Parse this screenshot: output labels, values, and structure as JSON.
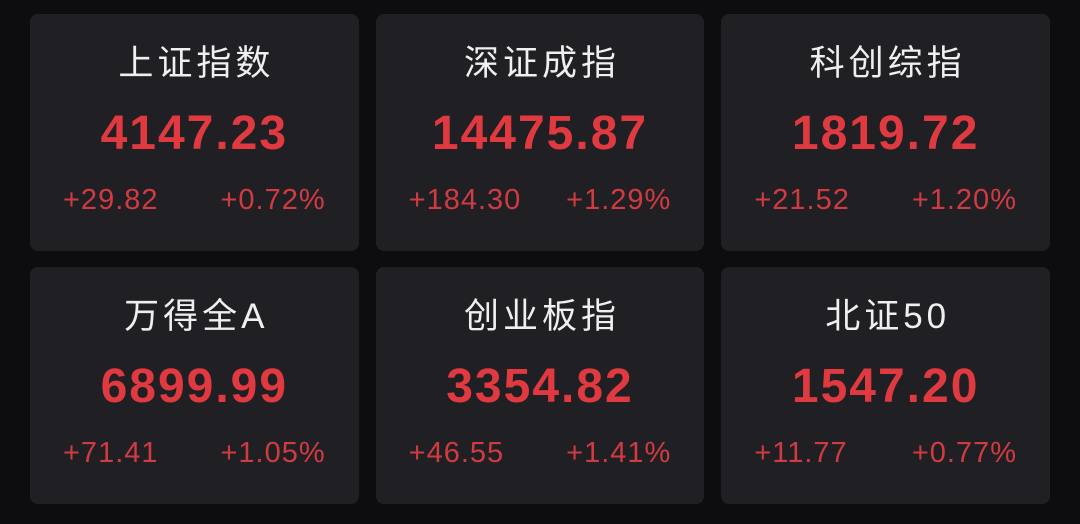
{
  "colors": {
    "page_bg": "#0d0d0f",
    "card_bg": "#202024",
    "title_text": "#efefef",
    "price_red": "#e03a40",
    "change_red": "#d03b41"
  },
  "indices": [
    {
      "name": "上证指数",
      "price": "4147.23",
      "change": "+29.82",
      "change_pct": "+0.72%"
    },
    {
      "name": "深证成指",
      "price": "14475.87",
      "change": "+184.30",
      "change_pct": "+1.29%"
    },
    {
      "name": "科创综指",
      "price": "1819.72",
      "change": "+21.52",
      "change_pct": "+1.20%"
    },
    {
      "name": "万得全A",
      "price": "6899.99",
      "change": "+71.41",
      "change_pct": "+1.05%"
    },
    {
      "name": "创业板指",
      "price": "3354.82",
      "change": "+46.55",
      "change_pct": "+1.41%"
    },
    {
      "name": "北证50",
      "price": "1547.20",
      "change": "+11.77",
      "change_pct": "+0.77%"
    }
  ]
}
